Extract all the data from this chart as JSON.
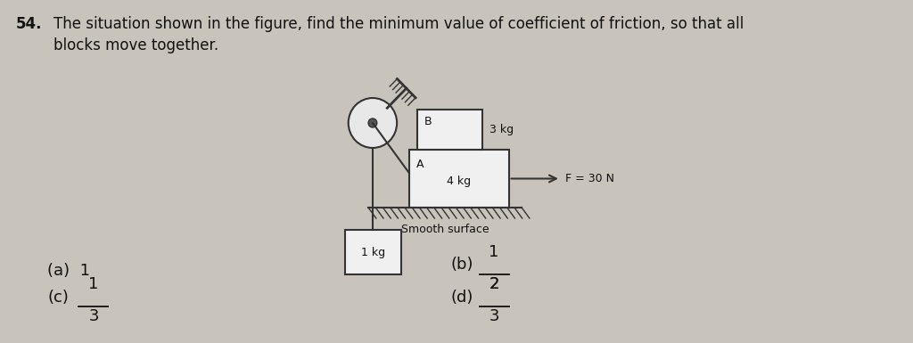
{
  "title_number": "54.",
  "title_text": "The situation shown in the figure, find the minimum value of coefficient of friction, so that all",
  "title_text2": "blocks move together.",
  "bg_color": "#c8c4bc",
  "text_color": "#111111",
  "options": {
    "a": "1",
    "b_num": "1",
    "b_den": "2",
    "c_num": "1",
    "c_den": "3",
    "d_num": "2",
    "d_den": "3"
  },
  "fontsize_title": 12,
  "fontsize_opts": 13
}
